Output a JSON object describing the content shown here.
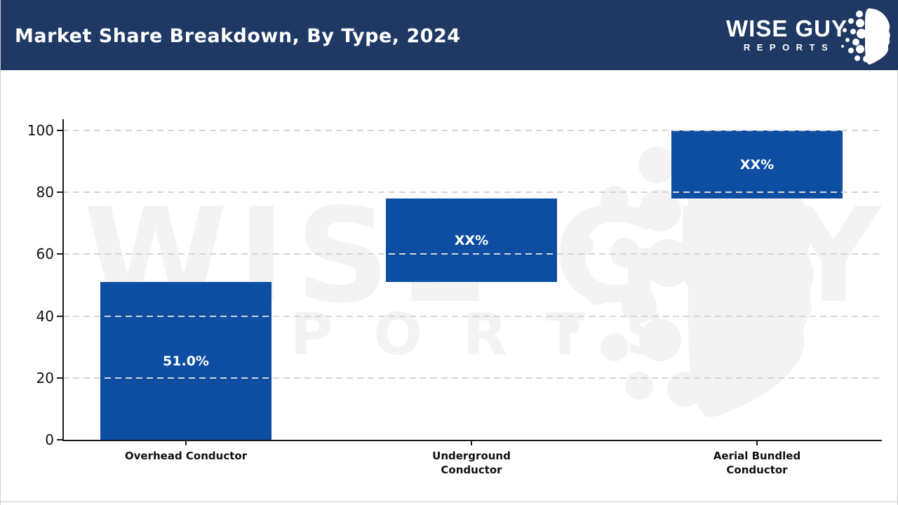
{
  "header": {
    "title": "Market Share Breakdown, By Type, 2024",
    "logo": {
      "line1": "WISE GUY",
      "line2": "REPORTS"
    }
  },
  "watermark": {
    "line1": "WISE GUY",
    "line2": "REPORTS"
  },
  "chart_data": {
    "type": "bar",
    "subtype": "waterfall-floating-segments",
    "title": "Market Share Breakdown, By Type, 2024",
    "categories": [
      "Overhead Conductor",
      "Underground\nConductor",
      "Aerial Bundled\nConductor"
    ],
    "segments": [
      {
        "category": "Overhead Conductor",
        "start": 0,
        "end": 51,
        "label": "51.0%"
      },
      {
        "category": "Underground Conductor",
        "start": 51,
        "end": 78,
        "label": "XX%"
      },
      {
        "category": "Aerial Bundled Conductor",
        "start": 78,
        "end": 100,
        "label": "XX%"
      }
    ],
    "yticks": [
      0,
      20,
      40,
      60,
      80,
      100
    ],
    "ylim": [
      0,
      105
    ],
    "xlabel": "",
    "ylabel": "",
    "grid": "horizontal-dashed-over-bars",
    "legend": "none"
  },
  "colors": {
    "header_bg": "#1F3864",
    "bar_fill": "#0D4DA2",
    "bar_label": "#FFFFFF",
    "grid": "#D6D6D6",
    "axis": "#1A1A1A",
    "tick_text": "#111111",
    "watermark": "#F3F3F3",
    "page_border": "#CCCCCC"
  }
}
